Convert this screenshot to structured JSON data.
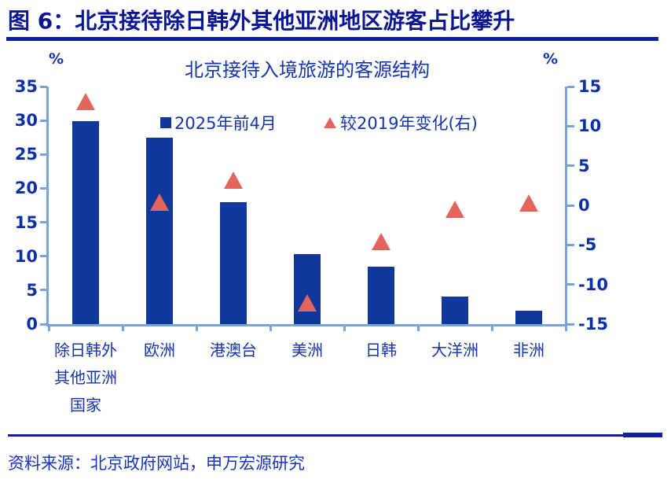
{
  "header": {
    "title": "图 6：北京接待除日韩外其他亚洲地区游客占比攀升"
  },
  "chart_data": {
    "type": "bar",
    "title": "北京接待入境旅游的客源结构",
    "categories": [
      "除日韩外其他亚洲国家",
      "欧洲",
      "港澳台",
      "美洲",
      "日韩",
      "大洋洲",
      "非洲"
    ],
    "category_lines": [
      [
        "除日韩外",
        "其他亚洲",
        "国家"
      ],
      [
        "欧洲"
      ],
      [
        "港澳台"
      ],
      [
        "美洲"
      ],
      [
        "日韩"
      ],
      [
        "大洋洲"
      ],
      [
        "非洲"
      ]
    ],
    "series": [
      {
        "name": "2025年前4月",
        "type": "bar",
        "axis": "left",
        "color": "#10389b",
        "values": [
          29.9,
          27.5,
          18.0,
          10.3,
          8.5,
          4.0,
          2.0
        ]
      },
      {
        "name": "较2019年变化(右)",
        "type": "scatter",
        "marker": "triangle-up",
        "axis": "right",
        "color": "#e2655e",
        "values": [
          13.1,
          0.4,
          3.2,
          -12.3,
          -4.6,
          -0.5,
          0.3
        ]
      }
    ],
    "left_axis": {
      "unit": "%",
      "min": 0,
      "max": 35,
      "ticks": [
        0,
        5,
        10,
        15,
        20,
        25,
        30,
        35
      ]
    },
    "right_axis": {
      "unit": "%",
      "min": -15,
      "max": 15,
      "ticks": [
        -15,
        -10,
        -5,
        0,
        5,
        10,
        15
      ]
    },
    "grid": false,
    "legend_position": "top-inside"
  },
  "footer": {
    "source": "资料来源：北京政府网站，申万宏源研究"
  },
  "colors": {
    "bar": "#10389b",
    "triangle": "#e2655e",
    "axis_line": "#78a3da",
    "tick_label": "#0c2fa6",
    "text_blue": "#1434b0",
    "title_navy": "#0a1692",
    "rule_blue": "#0c20a0",
    "source_blue": "#1733bd"
  }
}
